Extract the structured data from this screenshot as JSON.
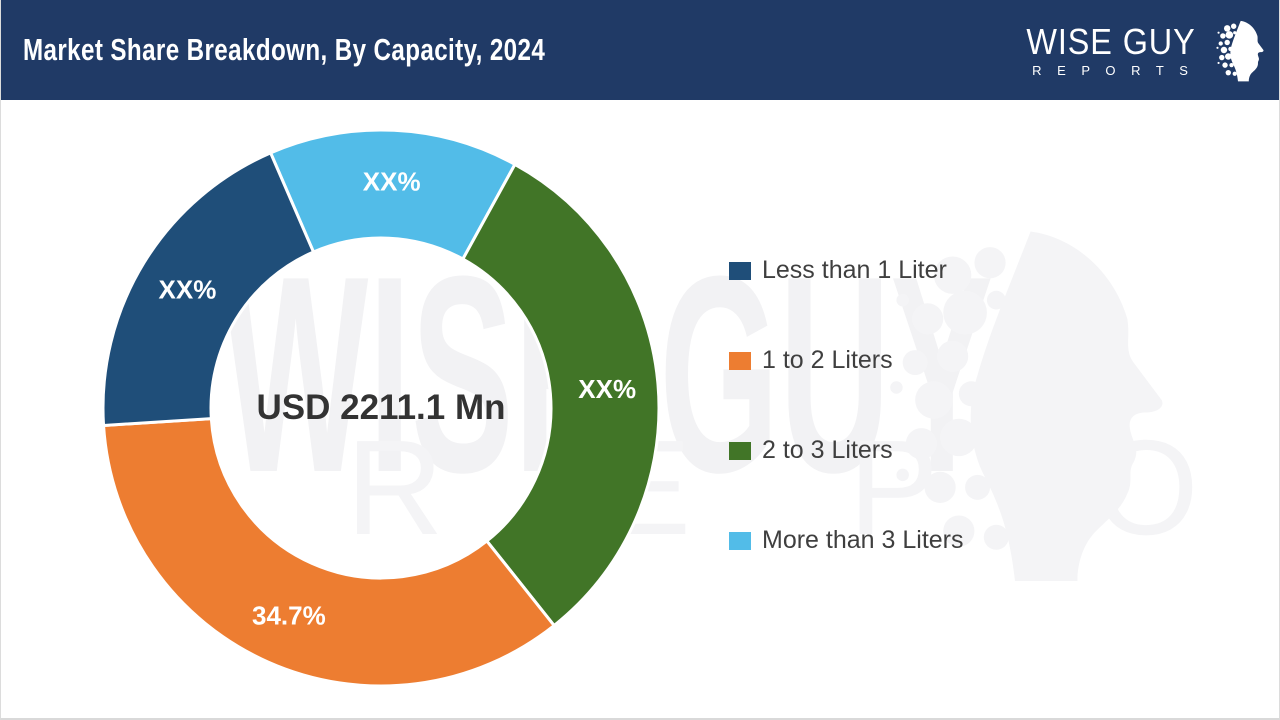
{
  "header": {
    "title": "Market Share Breakdown, By Capacity, 2024",
    "bg_color": "#203a66",
    "text_color": "#ffffff",
    "logo": {
      "brand": "Wise Guy Reports",
      "line1": "WISE GUY",
      "line2": "R E P O R T S",
      "face_icon": "head-profile-dots-icon"
    }
  },
  "watermark": {
    "line1": "WISE GUY",
    "line2": "R E P O R T S",
    "color": "#f2f2f4",
    "face_icon": "head-profile-dots-icon"
  },
  "chart_data": {
    "type": "pie",
    "variant": "donut",
    "title": "Market Share Breakdown, By Capacity, 2024",
    "center_label": "USD 2211.1 Mn",
    "legend_position": "right",
    "segments": [
      {
        "label": "Less than 1 Liter",
        "display_value": "XX%",
        "value_pct_est": 19.5,
        "color": "#1f4e79"
      },
      {
        "label": "1 to 2 Liters",
        "display_value": "34.7%",
        "value_pct_est": 34.7,
        "color": "#ed7d31"
      },
      {
        "label": "2 to 3 Liters",
        "display_value": "XX%",
        "value_pct_est": 31.3,
        "color": "#417527"
      },
      {
        "label": "More than 3 Liters",
        "display_value": "XX%",
        "value_pct_est": 14.5,
        "color": "#52bce8"
      }
    ],
    "start_angle_deg_cw_from_top": -23.4,
    "draw_order_clockwise": [
      3,
      2,
      1,
      0
    ],
    "value_label_color": "#ffffff",
    "center_label_color": "#333333",
    "legend_text_color": "#3f3f3f",
    "segment_gap_color": "#ffffff"
  }
}
